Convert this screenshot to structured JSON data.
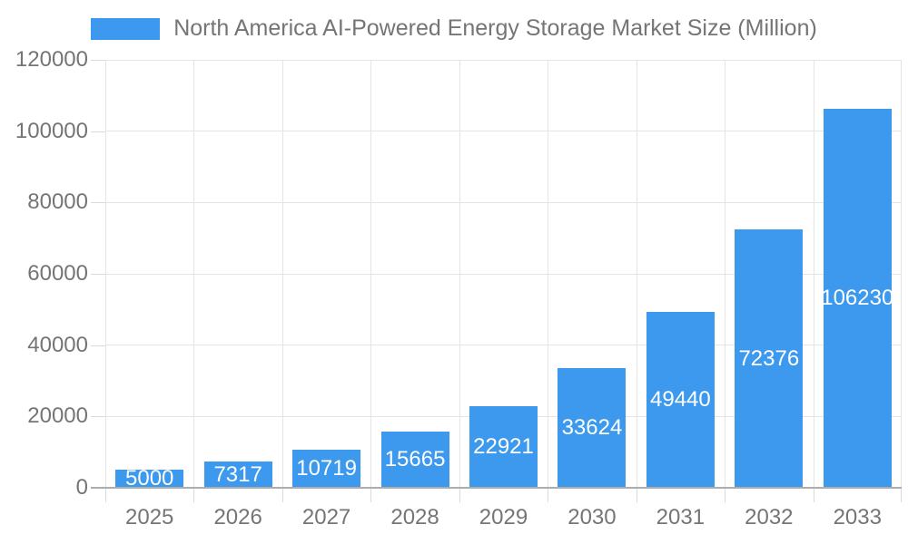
{
  "chart_data": {
    "type": "bar",
    "categories": [
      "2025",
      "2026",
      "2027",
      "2028",
      "2029",
      "2030",
      "2031",
      "2032",
      "2033"
    ],
    "series": [
      {
        "name": "North America AI-Powered Energy Storage Market Size (Million)",
        "values": [
          5000,
          7317,
          10719,
          15665,
          22921,
          33624,
          49440,
          72376,
          106230
        ]
      }
    ],
    "title": "North America AI-Powered Energy Storage Market Size (Million)",
    "xlabel": "",
    "ylabel": "",
    "ylim": [
      0,
      120000
    ],
    "yticks": [
      0,
      20000,
      40000,
      60000,
      80000,
      100000,
      120000
    ],
    "grid": true,
    "legend_position": "top",
    "bar_value_labels": true
  },
  "colors": {
    "bar": "#3C99ED",
    "grid": "#E4E4E4",
    "tick": "#DADADA",
    "axis_line": "#ADADAD",
    "axis_text": "#757575",
    "bar_label_text": "#FFFFFF",
    "background": "#FFFFFF"
  }
}
